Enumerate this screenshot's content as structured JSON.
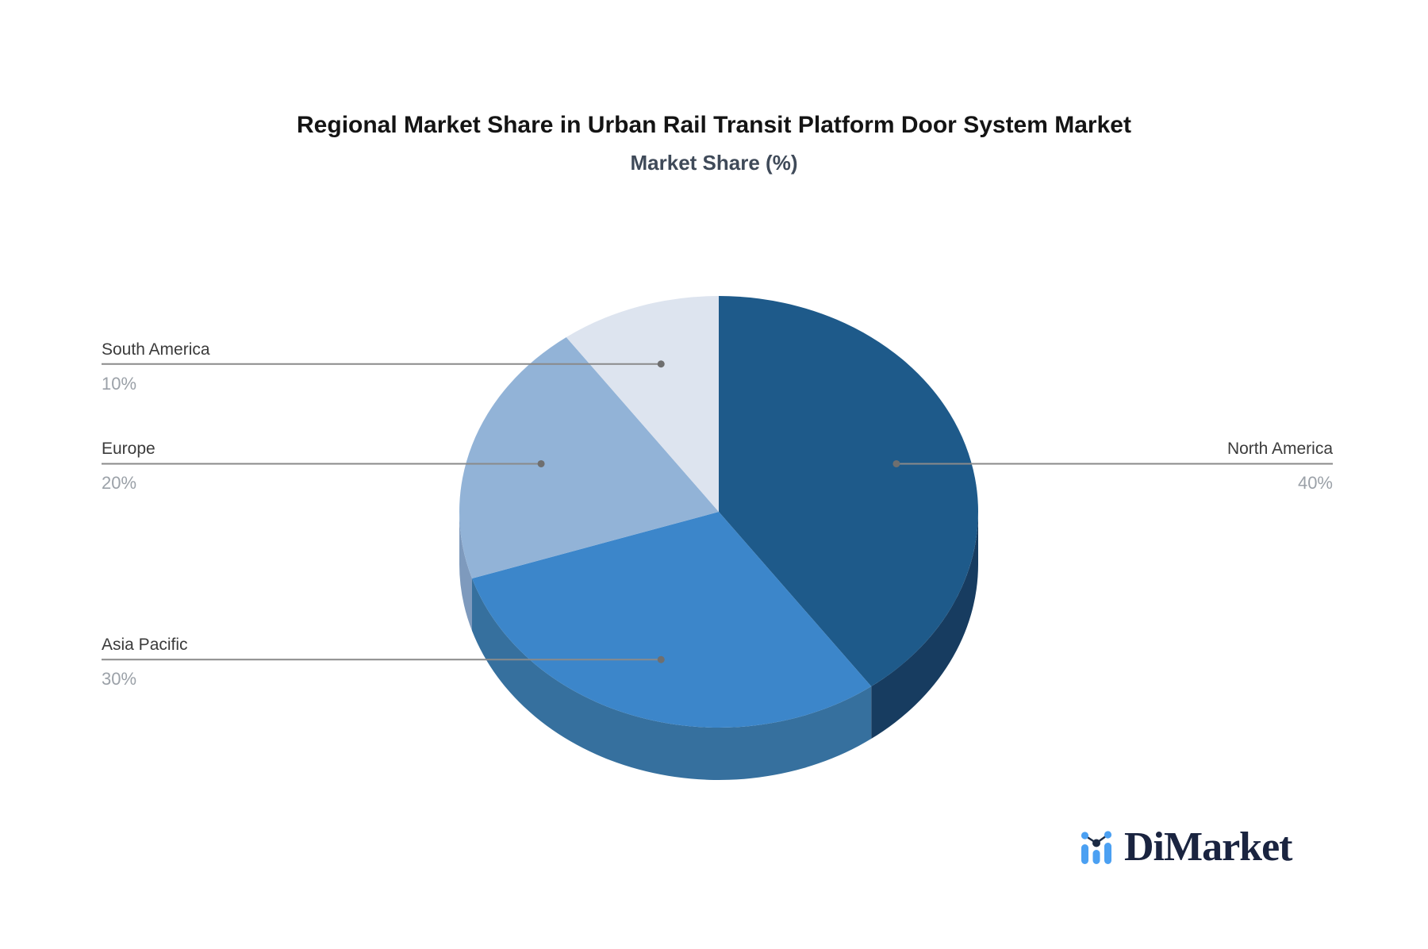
{
  "title": "Regional Market Share in Urban Rail Transit Platform Door System Market",
  "subtitle": "Market Share (%)",
  "chart_data": {
    "type": "pie",
    "style": "3d-pie",
    "title": "Regional Market Share in Urban Rail Transit Platform Door System Market",
    "subtitle": "Market Share (%)",
    "unit": "%",
    "direction": "clockwise",
    "start_angle_deg_from_top": 0,
    "legend_position": "callout-labels",
    "categories": [
      "North America",
      "Asia Pacific",
      "Europe",
      "South America"
    ],
    "values": [
      40,
      30,
      20,
      10
    ],
    "slices": [
      {
        "label": "North America",
        "value": 40,
        "pct": "40%",
        "color": "#1E5A8A",
        "side_color": "#173C60",
        "label_side": "right"
      },
      {
        "label": "Asia Pacific",
        "value": 30,
        "pct": "30%",
        "color": "#3C86CA",
        "side_color": "#36709E",
        "label_side": "left"
      },
      {
        "label": "Europe",
        "value": 20,
        "pct": "20%",
        "color": "#92B3D7",
        "side_color": "#7E9ABD",
        "label_side": "left"
      },
      {
        "label": "South America",
        "value": 10,
        "pct": "10%",
        "color": "#DDE4EF",
        "side_color": "#C9D3E5",
        "label_side": "left"
      }
    ],
    "callout_line_color": "#8a8a8a",
    "callout_dot_color": "#6f6f6f"
  },
  "logo": {
    "text": "DiMarket",
    "icon": "mini-bar-line-chart-icon",
    "accent_color": "#4BA0F2",
    "text_color": "#1A2440"
  }
}
